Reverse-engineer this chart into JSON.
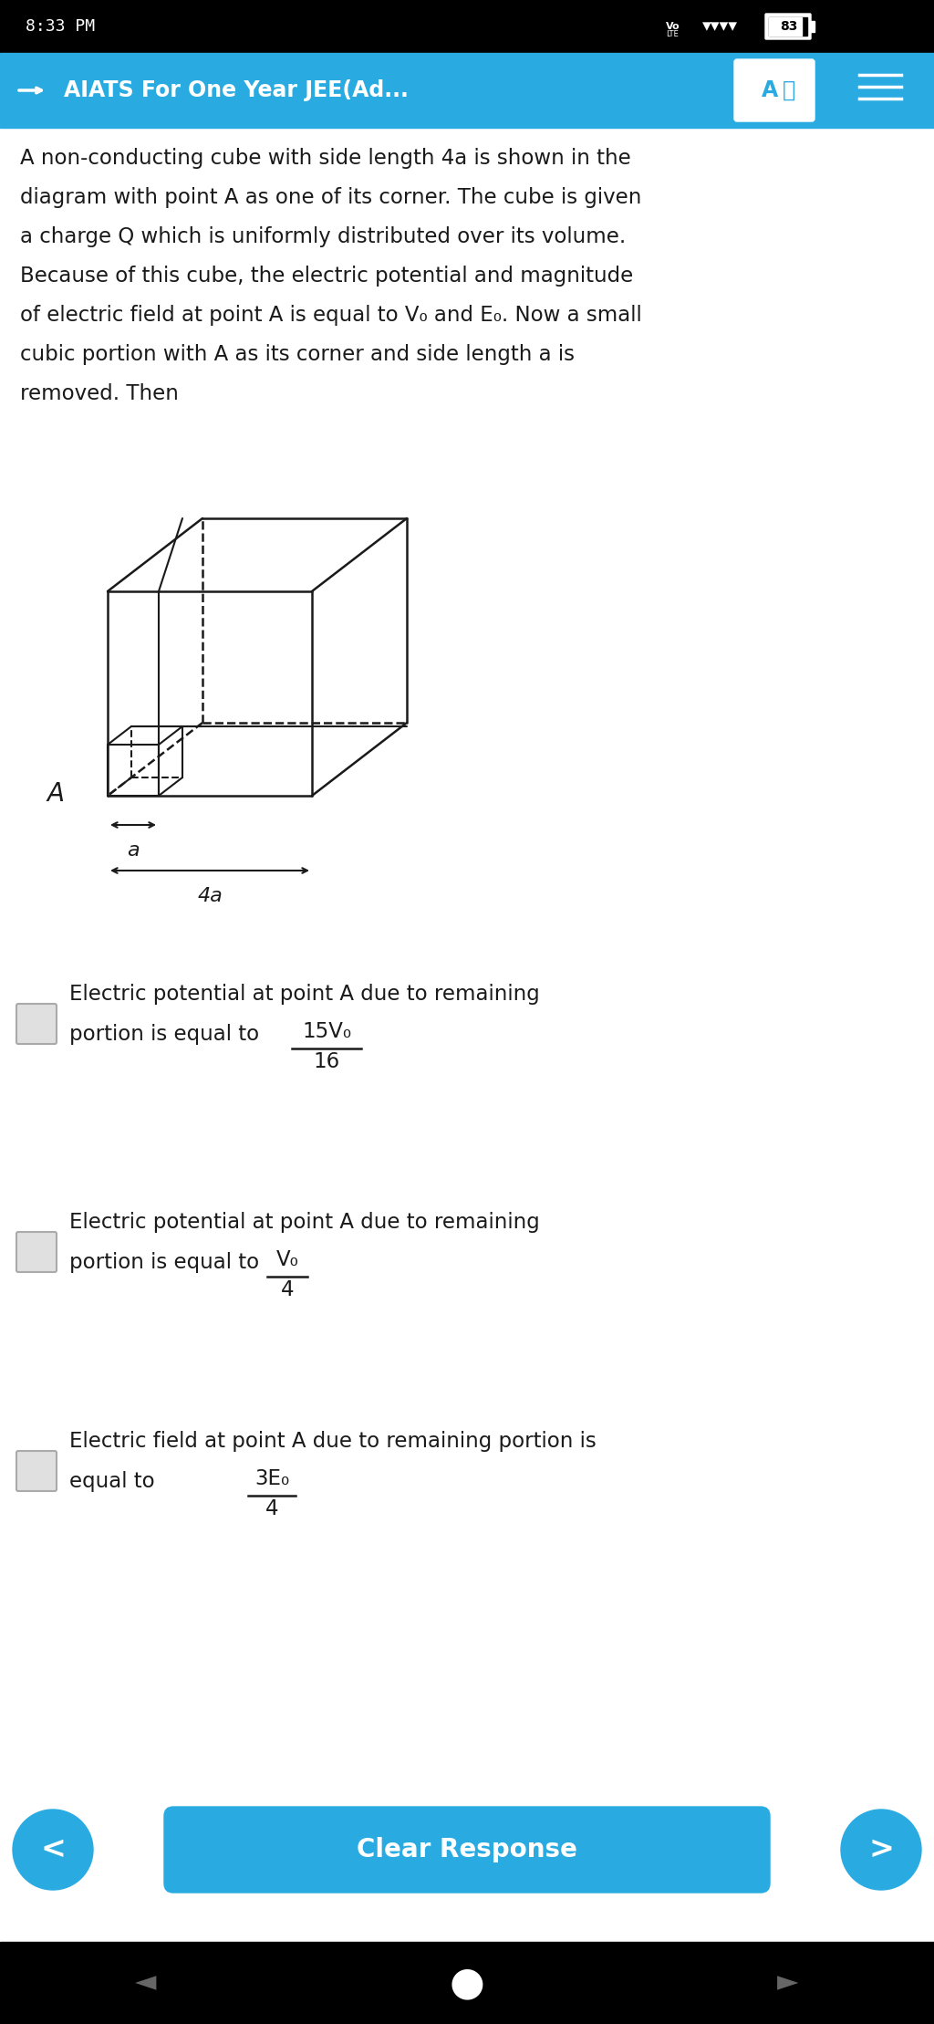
{
  "bg_color": "#ffffff",
  "status_bar_bg": "#000000",
  "status_bar_text": "8:33 PM",
  "nav_bar_bg": "#29ABE2",
  "nav_bar_title": "AIATS For One Year JEE(Ad...",
  "problem_lines": [
    "A non-conducting cube with side length 4a is shown in the",
    "diagram with point A as one of its corner. The cube is given",
    "a charge Q which is uniformly distributed over its volume.",
    "Because of this cube, the electric potential and magnitude",
    "of electric field at point A is equal to V₀ and E₀. Now a small",
    "cubic portion with A as its corner and side length a is",
    "removed. Then"
  ],
  "option1_line1": "Electric potential at point A due to remaining",
  "option1_line2": "portion is equal to",
  "option1_num": "15V₀",
  "option1_den": "16",
  "option2_line1": "Electric potential at point A due to remaining",
  "option2_line2": "portion is equal to",
  "option2_num": "V₀",
  "option2_den": "4",
  "option3_line1": "Electric field at point A due to remaining portion is",
  "option3_line2": "equal to",
  "option3_num": "3E₀",
  "option3_den": "4",
  "text_color": "#1a1a1a",
  "nav_bar_bg_btn": "#29ABE2",
  "bottom_button_text": "Clear Response"
}
